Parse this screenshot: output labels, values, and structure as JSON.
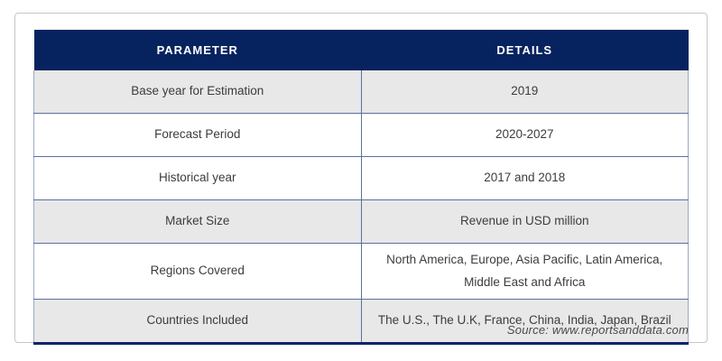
{
  "chart_data": {
    "type": "table",
    "title": "",
    "columns": [
      "PARAMETER",
      "DETAILS"
    ],
    "rows": [
      [
        "Base year for Estimation",
        "2019"
      ],
      [
        "Forecast Period",
        "2020-2027"
      ],
      [
        "Historical year",
        "2017 and 2018"
      ],
      [
        "Market Size",
        "Revenue in USD million"
      ],
      [
        "Regions Covered",
        "North America, Europe, Asia Pacific, Latin America, Middle East and Africa"
      ],
      [
        "Countries Included",
        "The U.S., The  U.K, France, China, India, Japan, Brazil"
      ]
    ],
    "source": "Source: www.reportsanddata.com"
  },
  "table": {
    "header": {
      "parameter": "PARAMETER",
      "details": "DETAILS"
    },
    "rows": [
      {
        "parameter": "Base year for Estimation",
        "details": "2019"
      },
      {
        "parameter": "Forecast Period",
        "details": "2020-2027"
      },
      {
        "parameter": "Historical year",
        "details": "2017 and 2018"
      },
      {
        "parameter": "Market Size",
        "details": "Revenue in USD million"
      },
      {
        "parameter": "Regions Covered",
        "details": "North America, Europe, Asia Pacific, Latin America, Middle East and Africa"
      },
      {
        "parameter": "Countries Included",
        "details": "The U.S., The  U.K, France, China, India, Japan, Brazil"
      }
    ]
  },
  "footer": {
    "source": "Source: www.reportsanddata.com"
  },
  "colors": {
    "header_bg": "#07235f",
    "header_text": "#ffffff",
    "row_shaded": "#e8e8e8",
    "row_white": "#ffffff",
    "cell_border": "#5b6f9f",
    "bottom_bar": "#0b2566",
    "frame_border": "#c6c6c6",
    "body_text": "#3c3c3c",
    "source_text": "#4a4a4a"
  }
}
